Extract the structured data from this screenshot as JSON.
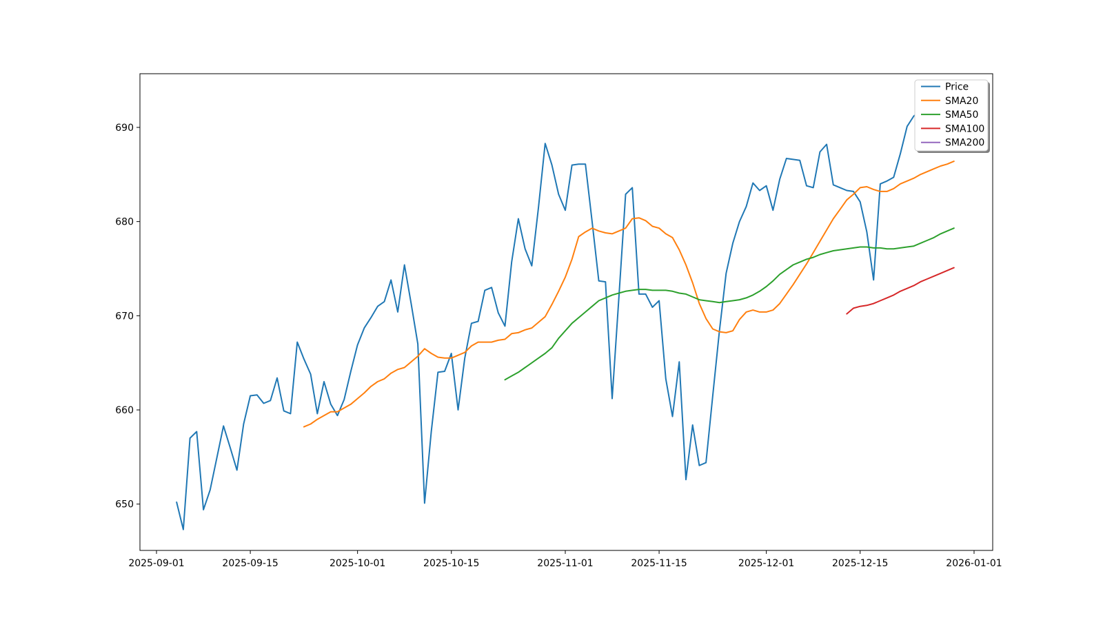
{
  "figure": {
    "background": "#ffffff",
    "border_color": "#000000"
  },
  "legend": {
    "entries": [
      "Price",
      "SMA20",
      "SMA50",
      "SMA100",
      "SMA200"
    ],
    "box_fill": "#ffffff",
    "box_edge": "#cccccc",
    "shadow_color": "#7f7f7f"
  },
  "chart_data": {
    "type": "line",
    "title": "",
    "xlabel": "",
    "ylabel": "",
    "grid": false,
    "legend_position": "upper right",
    "xticks": [
      "2025-09-01",
      "2025-09-15",
      "2025-10-01",
      "2025-10-15",
      "2025-11-01",
      "2025-11-15",
      "2025-12-01",
      "2025-12-15",
      "2026-01-01"
    ],
    "yticks": [
      650,
      660,
      670,
      680,
      690
    ],
    "ylim": [
      645.08,
      695.7
    ],
    "xlim_days_from_2025_09_01": [
      -2.47,
      124.78
    ],
    "x_unit": "calendar days",
    "series": [
      {
        "name": "Price",
        "color": "#1f77b4",
        "start": "2025-09-04",
        "values": [
          650.2,
          647.3,
          657.0,
          657.7,
          649.4,
          651.5,
          654.9,
          658.3,
          656.0,
          653.6,
          658.5,
          661.5,
          661.6,
          660.7,
          661.0,
          663.4,
          659.9,
          659.6,
          667.2,
          665.4,
          663.8,
          659.6,
          663.0,
          660.6,
          659.4,
          661.1,
          664.1,
          666.9,
          668.7,
          669.8,
          671.0,
          671.5,
          673.8,
          670.4,
          675.4,
          671.3,
          667.0,
          650.1,
          657.7,
          664.0,
          664.1,
          666.0,
          660.0,
          665.5,
          669.2,
          669.4,
          672.7,
          673.0,
          670.3,
          668.9,
          675.7,
          680.3,
          677.1,
          675.3,
          681.5,
          688.3,
          686.0,
          682.9,
          681.2,
          686.0,
          686.1,
          686.1,
          680.0,
          673.7,
          673.6,
          661.2,
          672.0,
          682.9,
          683.6,
          672.3,
          672.3,
          670.9,
          671.6,
          663.3,
          659.3,
          665.1,
          652.6,
          658.4,
          654.1,
          654.4,
          661.5,
          668.4,
          674.5,
          677.7,
          680.0,
          681.6,
          684.1,
          683.3,
          683.8,
          681.2,
          684.5,
          686.7,
          686.6,
          686.5,
          683.8,
          683.6,
          687.4,
          688.2,
          683.9,
          683.6,
          683.3,
          683.2,
          682.1,
          678.9,
          673.8,
          684.0,
          684.3,
          684.7,
          687.2,
          690.1,
          691.2,
          691.8,
          692.3,
          692.6,
          692.4,
          693.0,
          693.4
        ]
      },
      {
        "name": "SMA20",
        "color": "#ff7f0e",
        "start": "2025-09-23",
        "values": [
          658.2,
          658.5,
          659.0,
          659.4,
          659.8,
          659.8,
          660.2,
          660.6,
          661.2,
          661.8,
          662.5,
          663.0,
          663.3,
          663.9,
          664.3,
          664.5,
          665.1,
          665.7,
          666.5,
          666.0,
          665.6,
          665.5,
          665.5,
          665.8,
          666.1,
          666.8,
          667.2,
          667.2,
          667.2,
          667.4,
          667.5,
          668.1,
          668.2,
          668.5,
          668.7,
          669.3,
          669.9,
          671.2,
          672.6,
          674.1,
          676.0,
          678.4,
          678.9,
          679.3,
          679.0,
          678.8,
          678.7,
          679.0,
          679.3,
          680.3,
          680.4,
          680.1,
          679.5,
          679.3,
          678.7,
          678.3,
          677.0,
          675.4,
          673.5,
          671.3,
          669.7,
          668.6,
          668.3,
          668.2,
          668.4,
          669.6,
          670.4,
          670.6,
          670.4,
          670.4,
          670.6,
          671.3,
          672.3,
          673.3,
          674.4,
          675.5,
          676.7,
          677.9,
          679.1,
          680.3,
          681.3,
          682.3,
          682.9,
          683.6,
          683.7,
          683.4,
          683.2,
          683.2,
          683.5,
          684.0,
          684.3,
          684.6,
          685.0,
          685.3,
          685.6,
          685.9,
          686.1,
          686.4
        ]
      },
      {
        "name": "SMA50",
        "color": "#2ca02c",
        "start": "2025-10-23",
        "values": [
          663.2,
          663.6,
          664.0,
          664.5,
          665.0,
          665.5,
          666.0,
          666.6,
          667.6,
          668.4,
          669.2,
          669.8,
          670.4,
          671.0,
          671.6,
          671.9,
          672.2,
          672.4,
          672.6,
          672.7,
          672.8,
          672.8,
          672.7,
          672.7,
          672.7,
          672.6,
          672.4,
          672.3,
          672.0,
          671.7,
          671.6,
          671.5,
          671.4,
          671.5,
          671.6,
          671.7,
          671.9,
          672.2,
          672.6,
          673.1,
          673.7,
          674.4,
          674.9,
          675.4,
          675.7,
          676.0,
          676.2,
          676.5,
          676.7,
          676.9,
          677.0,
          677.1,
          677.2,
          677.3,
          677.3,
          677.2,
          677.2,
          677.1,
          677.1,
          677.2,
          677.3,
          677.4,
          677.7,
          678.0,
          678.3,
          678.7,
          679.0,
          679.3
        ]
      },
      {
        "name": "SMA100",
        "color": "#d62728",
        "start": "2025-12-13",
        "values": [
          670.2,
          670.8,
          671.0,
          671.1,
          671.3,
          671.6,
          671.9,
          672.2,
          672.6,
          672.9,
          673.2,
          673.6,
          673.9,
          674.2,
          674.5,
          674.8,
          675.1
        ]
      },
      {
        "name": "SMA200",
        "color": "#9467bd",
        "start": null,
        "values": []
      }
    ]
  }
}
